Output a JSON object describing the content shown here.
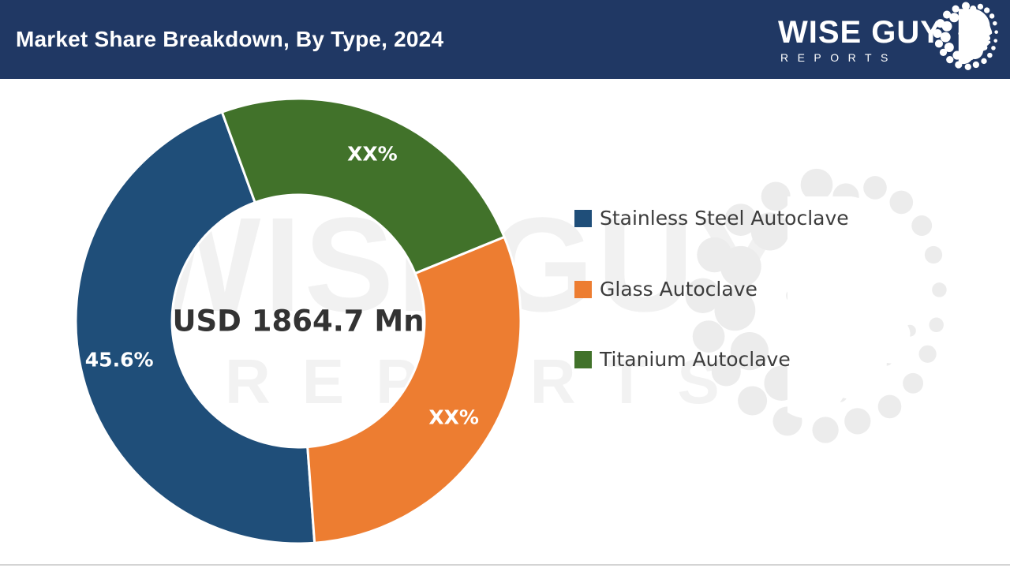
{
  "header": {
    "title": "Market Share Breakdown, By Type, 2024",
    "bg_color": "#203864",
    "logo": {
      "name": "WISE GUY",
      "sub": "REPORTS"
    }
  },
  "watermark": {
    "line1": "WISEGUY",
    "line2": "REPORTS"
  },
  "chart_data": {
    "type": "pie",
    "donut": true,
    "title": "Market Share Breakdown, By Type, 2024",
    "center_label": "USD 1864.7 Mn",
    "start_angle_deg": 175.8,
    "direction": "clockwise",
    "segments": [
      {
        "label": "Stainless Steel Autoclave",
        "pct": 45.6,
        "data_label": "45.6%",
        "color": "#1F4E79"
      },
      {
        "label": "Titanium Autoclave",
        "pct": 24.4,
        "data_label": "XX%",
        "color": "#41722A"
      },
      {
        "label": "Glass Autoclave",
        "pct": 30.0,
        "data_label": "XX%",
        "color": "#ED7D31"
      }
    ],
    "legend": {
      "position": "right",
      "items": [
        {
          "label": "Stainless Steel Autoclave",
          "color": "#1F4E79"
        },
        {
          "label": "Glass Autoclave",
          "color": "#ED7D31"
        },
        {
          "label": "Titanium Autoclave",
          "color": "#41722A"
        }
      ]
    }
  }
}
